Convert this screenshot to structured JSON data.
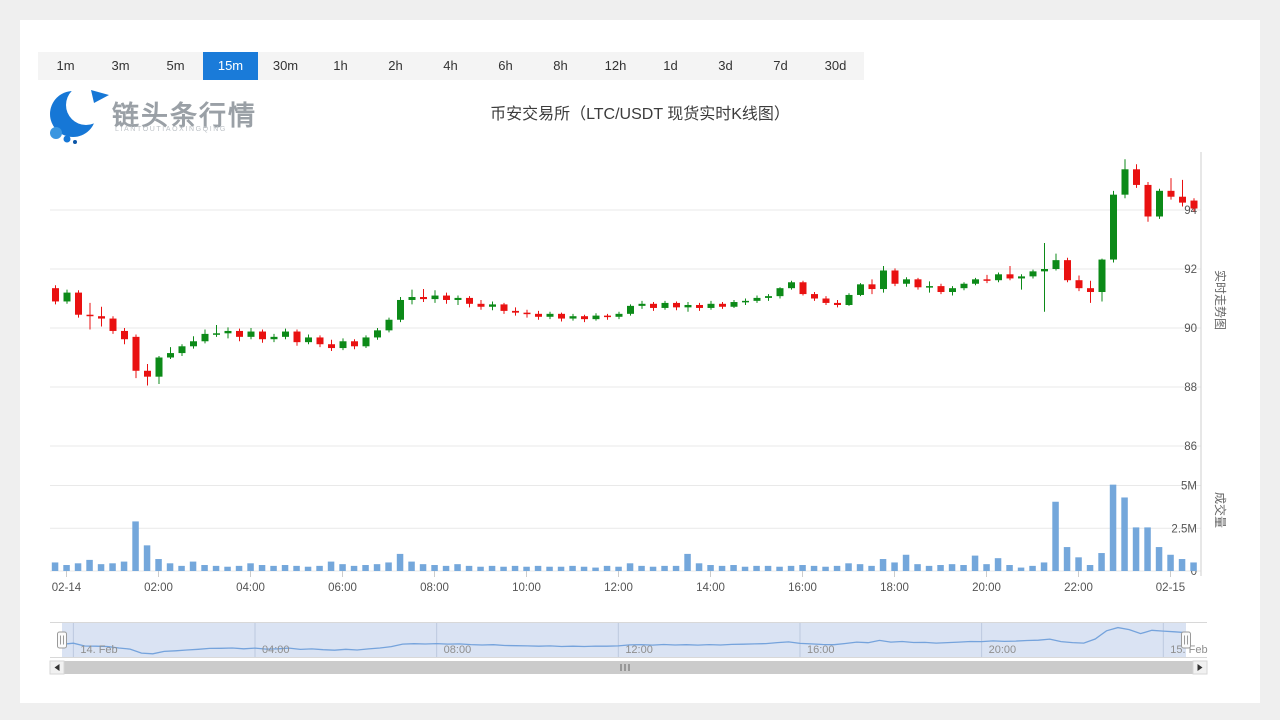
{
  "page": {
    "background": "#efefef",
    "card_background": "#ffffff"
  },
  "toolbar": {
    "timeframes": [
      "1m",
      "3m",
      "5m",
      "15m",
      "30m",
      "1h",
      "2h",
      "4h",
      "6h",
      "8h",
      "12h",
      "1d",
      "3d",
      "7d",
      "30d"
    ],
    "selected": "15m",
    "accent_color": "#1a7bd9"
  },
  "brand": {
    "name": "链头条行情",
    "subtitle": "LIANTOUTIAOXINGQING"
  },
  "header": {
    "title": "币安交易所（LTC/USDT 现货实时K线图）"
  },
  "chart_data": {
    "type": "candlestick+volume",
    "symbol": "LTC/USDT",
    "interval": "15m",
    "start_time": "02-13 23:45",
    "interval_minutes": 15,
    "price_axis": {
      "ticks": [
        86,
        88,
        90,
        92,
        94
      ],
      "title": "实时走势图",
      "range": [
        85.4,
        96.0
      ]
    },
    "volume_axis": {
      "tick_values": [
        0,
        2.5,
        5
      ],
      "tick_labels": [
        "0",
        "2.5M",
        "5M"
      ],
      "title": "成交量"
    },
    "x_ticks": [
      "02-14",
      "02:00",
      "04:00",
      "06:00",
      "08:00",
      "10:00",
      "12:00",
      "14:00",
      "16:00",
      "18:00",
      "20:00",
      "22:00",
      "02-15"
    ],
    "colors": {
      "up": "#0c8a18",
      "down": "#e91111",
      "volume": "#74a7db"
    },
    "candles": [
      [
        91.35,
        91.45,
        90.8,
        90.9,
        0.5
      ],
      [
        90.9,
        91.3,
        90.82,
        91.2,
        0.35
      ],
      [
        91.2,
        91.28,
        90.35,
        90.45,
        0.45
      ],
      [
        90.45,
        90.85,
        89.95,
        90.4,
        0.65
      ],
      [
        90.4,
        90.72,
        90.05,
        90.32,
        0.4
      ],
      [
        90.32,
        90.4,
        89.8,
        89.9,
        0.45
      ],
      [
        89.9,
        90.0,
        89.45,
        89.62,
        0.55
      ],
      [
        89.7,
        89.78,
        88.3,
        88.55,
        2.9
      ],
      [
        88.55,
        88.78,
        88.05,
        88.35,
        1.5
      ],
      [
        88.35,
        89.05,
        88.1,
        89.0,
        0.7
      ],
      [
        89.0,
        89.35,
        88.95,
        89.15,
        0.45
      ],
      [
        89.15,
        89.45,
        89.05,
        89.38,
        0.3
      ],
      [
        89.38,
        89.72,
        89.3,
        89.55,
        0.55
      ],
      [
        89.55,
        89.95,
        89.48,
        89.8,
        0.35
      ],
      [
        89.8,
        90.1,
        89.7,
        89.82,
        0.3
      ],
      [
        89.82,
        90.02,
        89.65,
        89.9,
        0.25
      ],
      [
        89.9,
        89.98,
        89.55,
        89.7,
        0.3
      ],
      [
        89.7,
        90.0,
        89.62,
        89.88,
        0.45
      ],
      [
        89.88,
        89.95,
        89.5,
        89.62,
        0.35
      ],
      [
        89.62,
        89.8,
        89.52,
        89.7,
        0.3
      ],
      [
        89.7,
        89.98,
        89.62,
        89.88,
        0.35
      ],
      [
        89.88,
        89.95,
        89.4,
        89.52,
        0.3
      ],
      [
        89.52,
        89.78,
        89.45,
        89.68,
        0.25
      ],
      [
        89.68,
        89.75,
        89.35,
        89.45,
        0.3
      ],
      [
        89.45,
        89.6,
        89.22,
        89.32,
        0.55
      ],
      [
        89.32,
        89.65,
        89.25,
        89.55,
        0.4
      ],
      [
        89.55,
        89.62,
        89.28,
        89.38,
        0.3
      ],
      [
        89.38,
        89.75,
        89.32,
        89.68,
        0.35
      ],
      [
        89.68,
        90.0,
        89.6,
        89.92,
        0.4
      ],
      [
        89.92,
        90.35,
        89.85,
        90.28,
        0.5
      ],
      [
        90.28,
        91.05,
        90.2,
        90.95,
        1.0
      ],
      [
        90.95,
        91.3,
        90.8,
        91.05,
        0.55
      ],
      [
        91.05,
        91.32,
        90.88,
        90.98,
        0.4
      ],
      [
        90.98,
        91.28,
        90.85,
        91.1,
        0.35
      ],
      [
        91.1,
        91.2,
        90.82,
        90.95,
        0.3
      ],
      [
        90.95,
        91.1,
        90.78,
        91.02,
        0.4
      ],
      [
        91.02,
        91.08,
        90.7,
        90.82,
        0.3
      ],
      [
        90.82,
        90.95,
        90.62,
        90.72,
        0.25
      ],
      [
        90.72,
        90.9,
        90.6,
        90.8,
        0.3
      ],
      [
        90.8,
        90.85,
        90.48,
        90.58,
        0.25
      ],
      [
        90.58,
        90.7,
        90.42,
        90.52,
        0.3
      ],
      [
        90.52,
        90.62,
        90.35,
        90.48,
        0.25
      ],
      [
        90.48,
        90.58,
        90.28,
        90.38,
        0.3
      ],
      [
        90.38,
        90.55,
        90.3,
        90.48,
        0.25
      ],
      [
        90.48,
        90.52,
        90.22,
        90.32,
        0.25
      ],
      [
        90.32,
        90.48,
        90.25,
        90.4,
        0.3
      ],
      [
        90.4,
        90.45,
        90.2,
        90.3,
        0.25
      ],
      [
        90.3,
        90.5,
        90.25,
        90.42,
        0.2
      ],
      [
        90.42,
        90.48,
        90.28,
        90.38,
        0.3
      ],
      [
        90.38,
        90.55,
        90.3,
        90.48,
        0.25
      ],
      [
        90.48,
        90.8,
        90.42,
        90.75,
        0.45
      ],
      [
        90.75,
        90.92,
        90.65,
        90.82,
        0.3
      ],
      [
        90.82,
        90.88,
        90.58,
        90.68,
        0.25
      ],
      [
        90.68,
        90.92,
        90.62,
        90.85,
        0.3
      ],
      [
        90.85,
        90.9,
        90.6,
        90.7,
        0.3
      ],
      [
        90.7,
        90.88,
        90.55,
        90.78,
        1.0
      ],
      [
        90.78,
        90.85,
        90.58,
        90.68,
        0.45
      ],
      [
        90.68,
        90.92,
        90.62,
        90.82,
        0.35
      ],
      [
        90.82,
        90.88,
        90.65,
        90.72,
        0.3
      ],
      [
        90.72,
        90.95,
        90.68,
        90.88,
        0.35
      ],
      [
        90.88,
        91.0,
        90.78,
        90.92,
        0.25
      ],
      [
        90.92,
        91.1,
        90.85,
        91.02,
        0.3
      ],
      [
        91.02,
        91.15,
        90.92,
        91.08,
        0.3
      ],
      [
        91.08,
        91.38,
        91.0,
        91.35,
        0.25
      ],
      [
        91.35,
        91.6,
        91.3,
        91.55,
        0.3
      ],
      [
        91.55,
        91.6,
        91.1,
        91.15,
        0.35
      ],
      [
        91.15,
        91.22,
        90.92,
        91.0,
        0.3
      ],
      [
        91.0,
        91.08,
        90.78,
        90.85,
        0.25
      ],
      [
        90.85,
        90.95,
        90.7,
        90.78,
        0.3
      ],
      [
        90.78,
        91.18,
        90.75,
        91.12,
        0.45
      ],
      [
        91.12,
        91.52,
        91.08,
        91.48,
        0.4
      ],
      [
        91.48,
        91.65,
        91.15,
        91.32,
        0.3
      ],
      [
        91.32,
        92.1,
        91.2,
        91.95,
        0.7
      ],
      [
        91.95,
        92.02,
        91.42,
        91.5,
        0.5
      ],
      [
        91.5,
        91.72,
        91.4,
        91.65,
        0.95
      ],
      [
        91.65,
        91.7,
        91.3,
        91.38,
        0.4
      ],
      [
        91.38,
        91.58,
        91.2,
        91.42,
        0.3
      ],
      [
        91.42,
        91.5,
        91.15,
        91.22,
        0.35
      ],
      [
        91.22,
        91.42,
        91.1,
        91.35,
        0.4
      ],
      [
        91.35,
        91.55,
        91.28,
        91.5,
        0.35
      ],
      [
        91.5,
        91.7,
        91.45,
        91.65,
        0.9
      ],
      [
        91.65,
        91.8,
        91.52,
        91.62,
        0.4
      ],
      [
        91.62,
        91.88,
        91.55,
        91.82,
        0.75
      ],
      [
        91.82,
        92.1,
        91.62,
        91.68,
        0.35
      ],
      [
        91.68,
        91.82,
        91.3,
        91.75,
        0.2
      ],
      [
        91.75,
        91.98,
        91.68,
        91.92,
        0.3
      ],
      [
        91.92,
        92.88,
        90.55,
        92.0,
        0.5
      ],
      [
        92.0,
        92.52,
        91.95,
        92.3,
        4.05
      ],
      [
        92.3,
        92.38,
        91.55,
        91.62,
        1.4
      ],
      [
        91.62,
        91.78,
        91.25,
        91.35,
        0.8
      ],
      [
        91.35,
        91.6,
        90.85,
        91.22,
        0.35
      ],
      [
        91.22,
        92.35,
        90.9,
        92.32,
        1.05
      ],
      [
        92.32,
        94.65,
        92.22,
        94.52,
        5.05
      ],
      [
        94.52,
        95.72,
        94.4,
        95.38,
        4.3
      ],
      [
        95.38,
        95.55,
        94.75,
        94.85,
        2.55
      ],
      [
        94.85,
        94.95,
        93.6,
        93.78,
        2.55
      ],
      [
        93.78,
        94.72,
        93.7,
        94.65,
        1.4
      ],
      [
        94.65,
        95.08,
        94.35,
        94.45,
        0.95
      ],
      [
        94.45,
        95.02,
        94.12,
        94.25,
        0.7
      ],
      [
        94.32,
        94.4,
        93.95,
        94.05,
        0.5
      ]
    ]
  },
  "navigator": {
    "labels": [
      "14. Feb",
      "04:00",
      "08:00",
      "12:00",
      "16:00",
      "20:00",
      "15. Feb"
    ],
    "mask_color": "rgba(166,189,227,0.42)",
    "line_color": "#75a3dc"
  },
  "scrollbar": {
    "grip": "|||"
  }
}
